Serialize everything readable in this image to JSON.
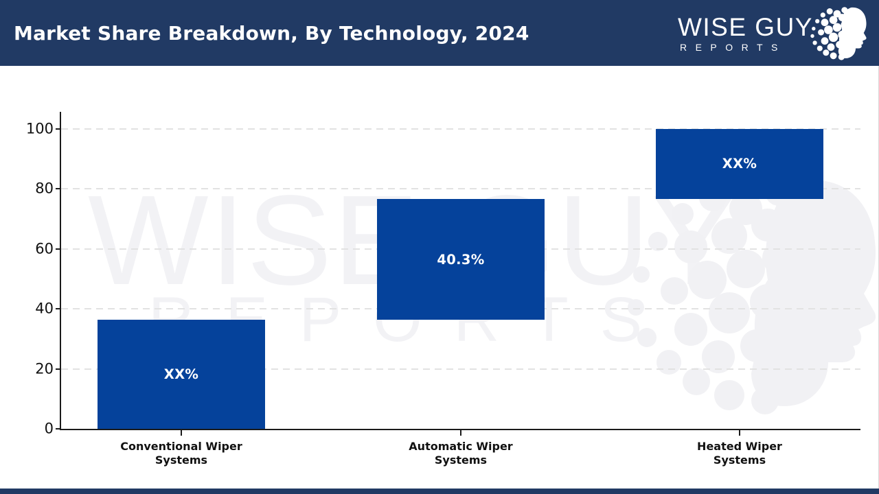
{
  "header": {
    "title": "Market Share Breakdown, By Technology, 2024"
  },
  "logo": {
    "wordmark": "WISE GUY",
    "tagline": "REPORTS"
  },
  "chart_data": {
    "type": "bar",
    "variant": "floating-waterfall",
    "title": "Market Share Breakdown, By Technology, 2024",
    "categories": [
      [
        "Conventional Wiper",
        "Systems"
      ],
      [
        "Automatic Wiper",
        "Systems"
      ],
      [
        "Heated Wiper",
        "Systems"
      ]
    ],
    "segments": [
      {
        "start": 0,
        "end": 36.3,
        "label": "XX%"
      },
      {
        "start": 36.3,
        "end": 76.6,
        "label": "40.3%"
      },
      {
        "start": 76.6,
        "end": 100,
        "label": "XX%"
      }
    ],
    "yticks": [
      0,
      20,
      40,
      60,
      80,
      100
    ],
    "ylim": [
      0,
      105.5
    ],
    "xlabel": "",
    "ylabel": "",
    "grid": "horizontal-dashed",
    "legend": null,
    "colors": {
      "bar": "#05429b",
      "bar_label": "#ffffff",
      "header_bg": "#213a64",
      "footer_bg": "#213a64",
      "grid": "#e2e2e2",
      "axis": "#1a1a1a",
      "watermark": "#f2f2f5"
    }
  }
}
